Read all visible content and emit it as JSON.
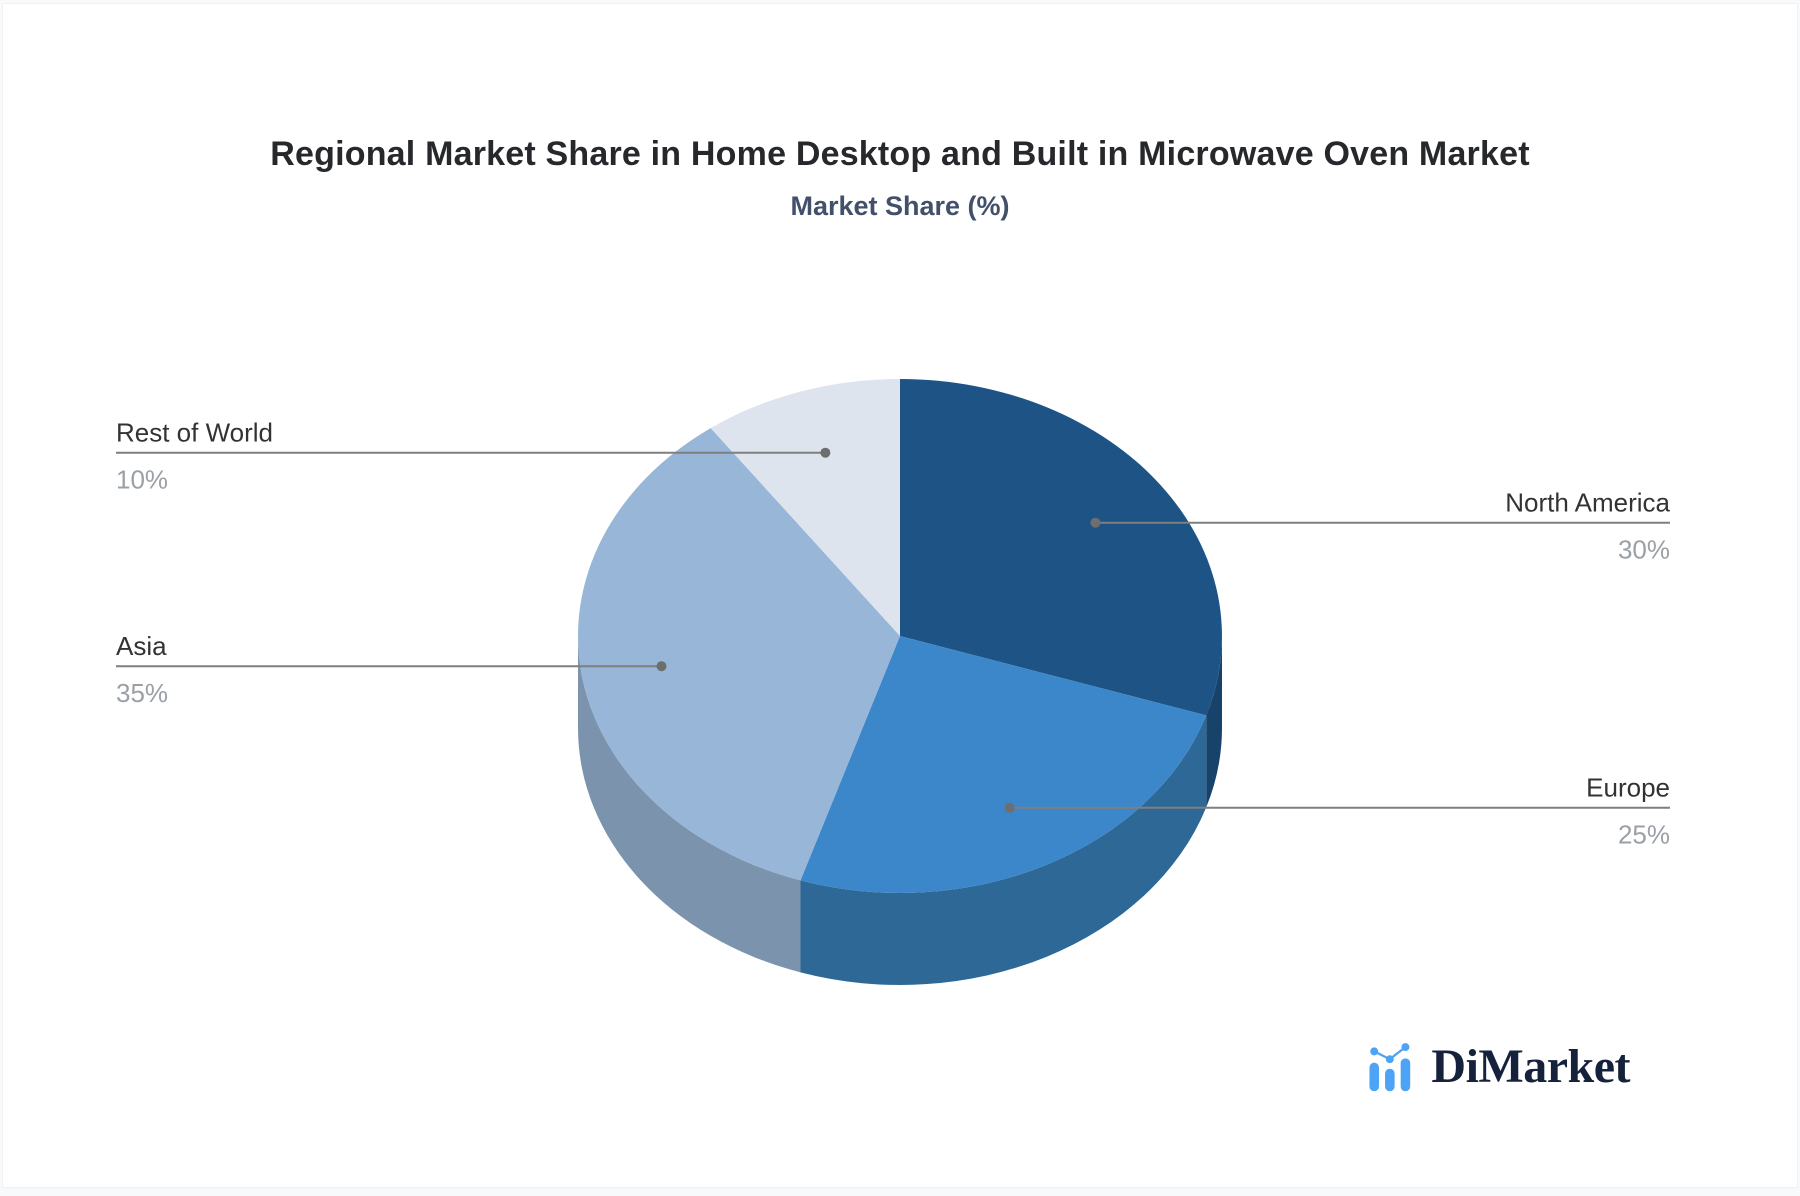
{
  "header": {
    "title": "Regional Market Share in Home Desktop and Built in Microwave Oven Market",
    "subtitle": "Market Share (%)"
  },
  "chart_data": {
    "type": "pie",
    "title": "Regional Market Share in Home Desktop and Built in Microwave Oven Market",
    "subtitle": "Market Share (%)",
    "unit": "%",
    "effect": "3d",
    "start_angle": "12-oclock",
    "direction": "clockwise",
    "legend_position": "callout-labels",
    "slices": [
      {
        "label": "North America",
        "value": 30,
        "display_value": "30%",
        "color": "#1d5385",
        "side_color": "#17436b"
      },
      {
        "label": "Europe",
        "value": 25,
        "display_value": "25%",
        "color": "#3b87c9",
        "side_color": "#2e6896"
      },
      {
        "label": "Asia",
        "value": 35,
        "display_value": "35%",
        "color": "#97b6d8",
        "side_color": "#7b93ad"
      },
      {
        "label": "Rest of World",
        "value": 10,
        "display_value": "10%",
        "color": "#dde4ee",
        "side_color": "#b9c4d4"
      }
    ]
  },
  "callout_style": {
    "line_color": "#7f7f7f",
    "dot_color": "#6e6e6e",
    "label_color": "#333333",
    "value_color": "#9aa0a6"
  },
  "logo": {
    "name": "DiMarket",
    "icon": "bar-line-chart-icon",
    "icon_color": "#4da3f5",
    "text_color": "#16223c"
  }
}
